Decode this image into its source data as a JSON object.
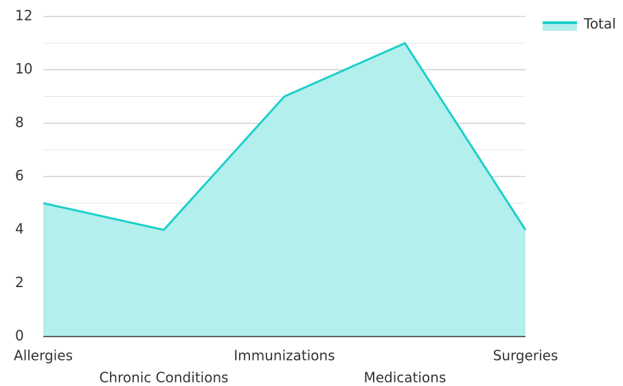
{
  "chart_data": {
    "type": "area",
    "categories": [
      "Allergies",
      "Chronic Conditions",
      "Immunizations",
      "Medications",
      "Surgeries"
    ],
    "series": [
      {
        "name": "Total",
        "color": "#1ccfc9",
        "fill": "#b2efed",
        "values": [
          5,
          4,
          9,
          11,
          4
        ]
      }
    ],
    "ylim": [
      0,
      12
    ],
    "yticks": [
      0,
      2,
      4,
      6,
      8,
      10,
      12
    ],
    "minor_yticks": [
      1,
      3,
      5,
      7,
      9,
      11
    ],
    "grid": true,
    "legend": "top-right"
  }
}
